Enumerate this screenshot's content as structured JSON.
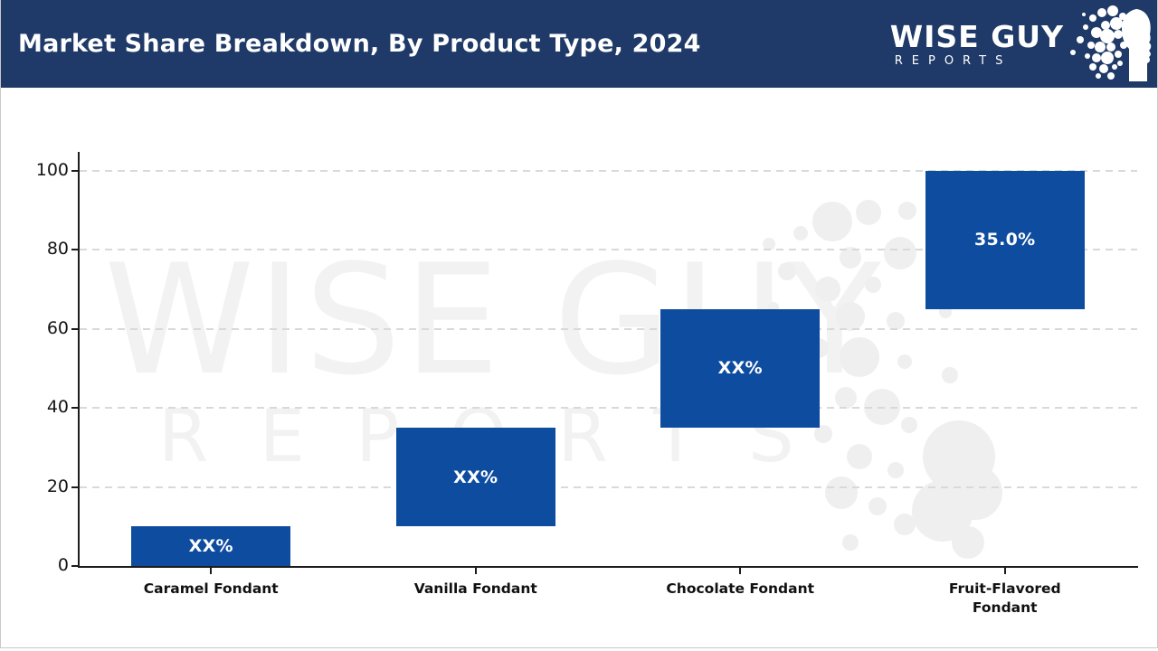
{
  "header": {
    "title": "Market Share Breakdown, By Product Type, 2024",
    "logo": {
      "line1": "WISE GUY",
      "line2": "REPORTS"
    }
  },
  "watermark": {
    "line1": "WISE GUY",
    "line2": "REPORTS"
  },
  "colors": {
    "header_bg": "#1f3a68",
    "bar": "#0e4c9f",
    "bar_label": "#ffffff",
    "grid": "#d9d9d9",
    "axis": "#1c1c1c",
    "watermark": "#f2f2f3"
  },
  "chart_data": {
    "type": "bar",
    "variant": "floating-segment-waterfall",
    "title": "Market Share Breakdown, By Product Type, 2024",
    "xlabel": "",
    "ylabel": "",
    "ylim": [
      0,
      100
    ],
    "yticks": [
      0,
      20,
      40,
      60,
      80,
      100
    ],
    "grid": "horizontal-dashed",
    "legend": "none",
    "categories": [
      "Caramel Fondant",
      "Vanilla Fondant",
      "Chocolate Fondant",
      "Fruit-Flavored Fondant"
    ],
    "bars": [
      {
        "category": "Caramel Fondant",
        "start": 0,
        "end": 10,
        "label": "XX%"
      },
      {
        "category": "Vanilla Fondant",
        "start": 10,
        "end": 35,
        "label": "XX%"
      },
      {
        "category": "Chocolate Fondant",
        "start": 35,
        "end": 65,
        "label": "XX%"
      },
      {
        "category": "Fruit-Flavored Fondant",
        "start": 65,
        "end": 100,
        "label": "35.0%"
      }
    ]
  }
}
